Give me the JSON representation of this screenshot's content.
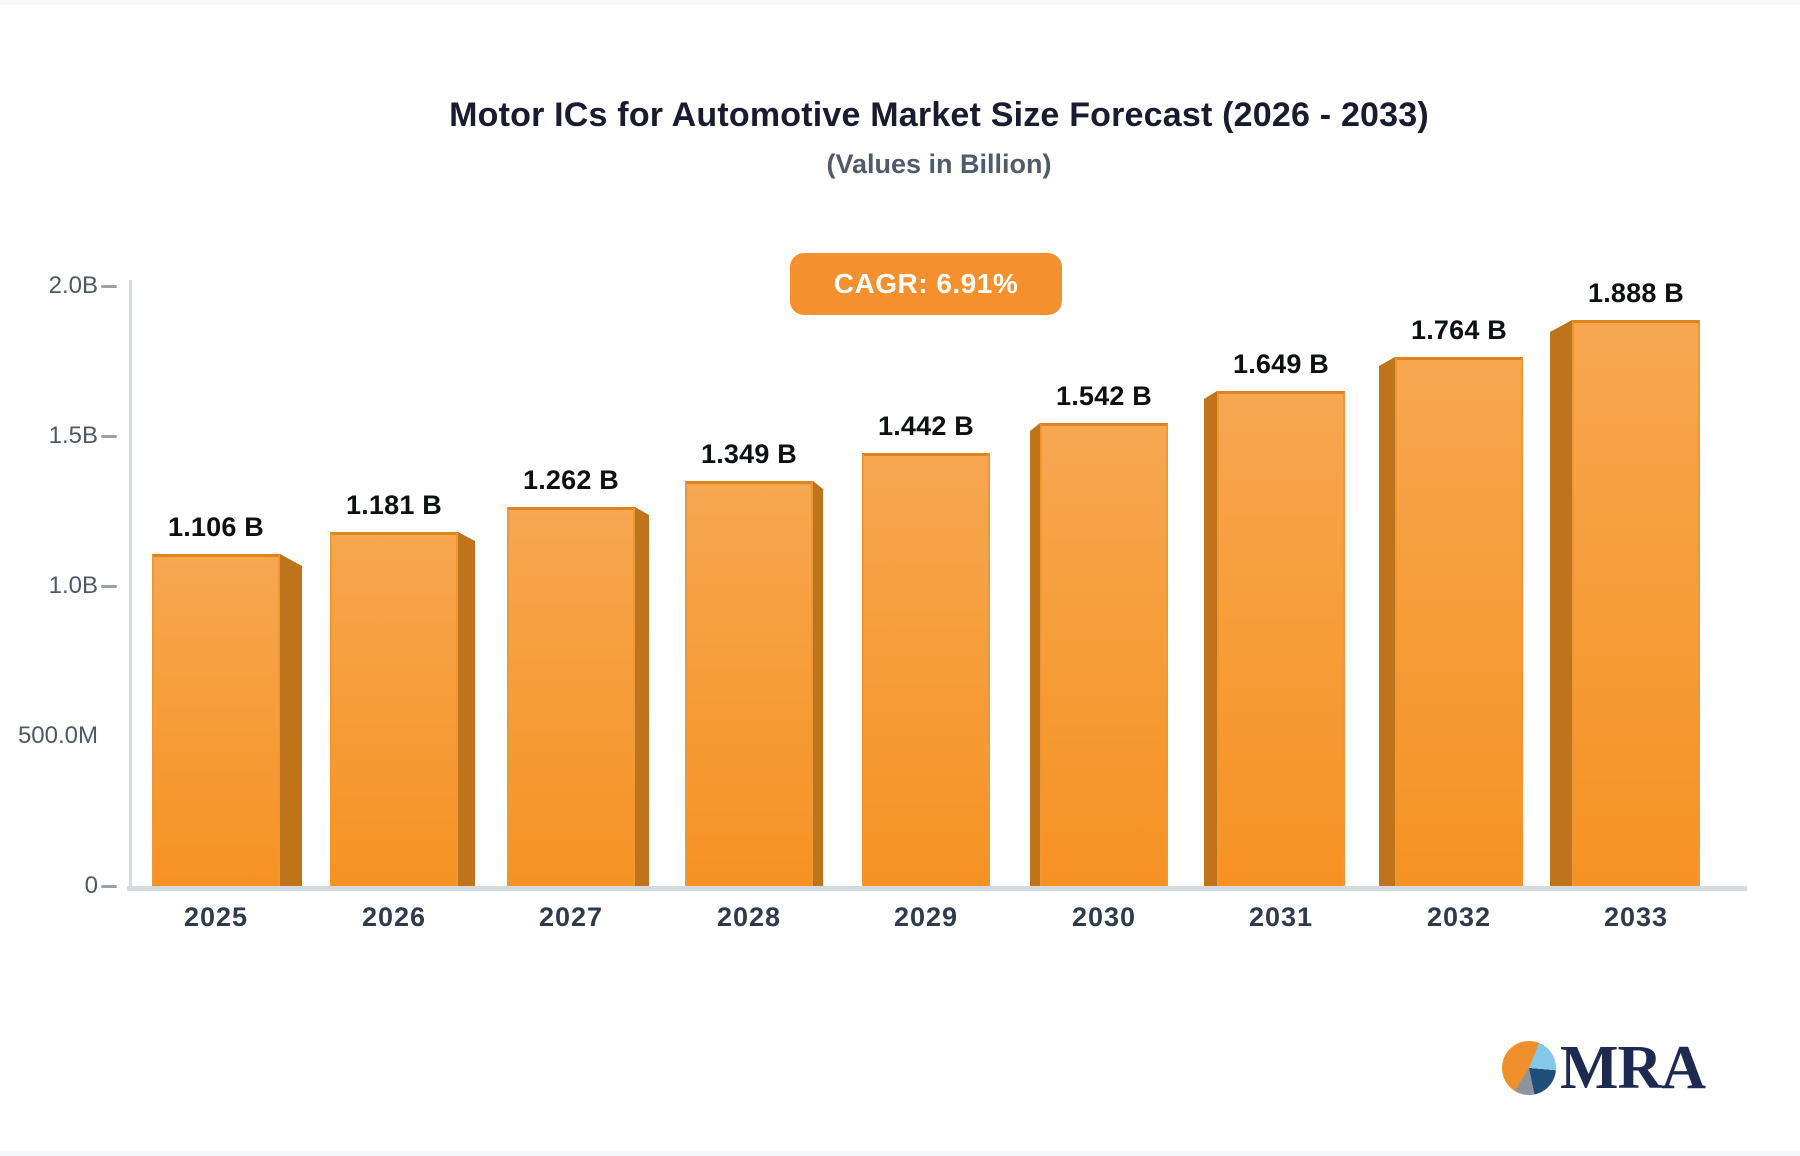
{
  "header": {
    "title": "Motor ICs for Automotive Market Size Forecast (2026 - 2033)",
    "subtitle": "(Values in Billion)",
    "cagr_badge": "CAGR: 6.91%"
  },
  "chart_data": {
    "type": "bar",
    "title": "Motor ICs for Automotive Market Size Forecast (2026 - 2033)",
    "subtitle": "(Values in Billion)",
    "cagr": "6.91%",
    "categories": [
      "2025",
      "2026",
      "2027",
      "2028",
      "2029",
      "2030",
      "2031",
      "2032",
      "2033"
    ],
    "values": [
      1.106,
      1.181,
      1.262,
      1.349,
      1.442,
      1.542,
      1.649,
      1.764,
      1.888
    ],
    "value_labels": [
      "1.106 B",
      "1.181 B",
      "1.262 B",
      "1.349 B",
      "1.442 B",
      "1.542 B",
      "1.649 B",
      "1.764 B",
      "1.888 B"
    ],
    "y_ticks": [
      "2.0B",
      "1.5B",
      "1.0B",
      "500.0M",
      "0"
    ],
    "y_ticks_dash": [
      true,
      true,
      true,
      false,
      true
    ],
    "ylim": [
      0,
      2.0
    ],
    "grid": false,
    "legend": false,
    "bar_color_top": "#f6a750",
    "bar_color_bottom": "#f69222",
    "bar_side_color": "#bf741b"
  },
  "logo": {
    "text": "MRA"
  },
  "colors": {
    "badge_background": "#f4902e",
    "badge_text": "#ffffff",
    "axis_line": "#d6dadf",
    "title_text": "#1a1b2e",
    "subtitle_text": "#505b69",
    "logo_navy": "#1e2a52"
  }
}
